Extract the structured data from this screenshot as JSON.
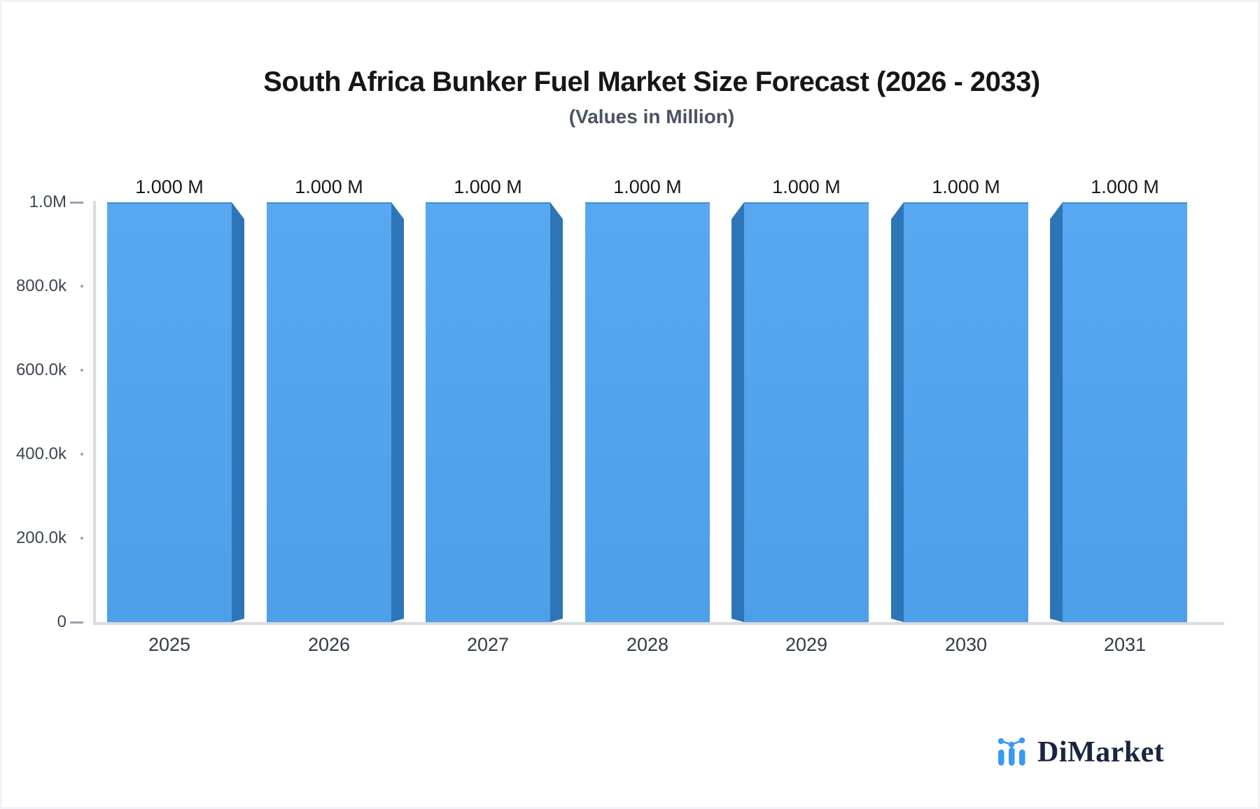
{
  "header": {
    "title": "South Africa Bunker Fuel Market Size Forecast (2026 - 2033)",
    "subtitle": "(Values in Million)"
  },
  "chart_data": {
    "type": "bar",
    "title": "South Africa Bunker Fuel Market Size Forecast (2026 - 2033)",
    "subtitle": "(Values in Million)",
    "categories": [
      "2025",
      "2026",
      "2027",
      "2028",
      "2029",
      "2030",
      "2031"
    ],
    "values": [
      1000000,
      1000000,
      1000000,
      1000000,
      1000000,
      1000000,
      1000000
    ],
    "bar_labels": [
      "1.000 M",
      "1.000 M",
      "1.000 M",
      "1.000 M",
      "1.000 M",
      "1.000 M",
      "1.000 M"
    ],
    "xlabel": "",
    "ylabel": "",
    "ylim": [
      0,
      1000000
    ],
    "y_ticks": [
      {
        "label": "0",
        "value": 0,
        "major": true
      },
      {
        "label": "200.0k",
        "value": 200000,
        "major": false
      },
      {
        "label": "400.0k",
        "value": 400000,
        "major": false
      },
      {
        "label": "600.0k",
        "value": 600000,
        "major": false
      },
      {
        "label": "800.0k",
        "value": 800000,
        "major": false
      },
      {
        "label": "1.0M",
        "value": 1000000,
        "major": true
      }
    ],
    "grid": false,
    "legend": false,
    "style": {
      "effect": "3d-bevel",
      "bar_face_color_top": "#58a8f1",
      "bar_face_color_bottom": "#4d9fe9",
      "bar_side_color": "#2d75b6",
      "bar_top_edge_color": "#4190d2",
      "axis_line_color": "#d8dbe0",
      "tick_mark_color": "#9aa1aa",
      "tick_label_color": "#3d4654",
      "category_label_color": "#313a49",
      "value_label_color": "#17191e"
    }
  },
  "branding": {
    "name": "DiMarket",
    "icon": "mini-bar-chart",
    "icon_color": "#3b99f2",
    "name_color": "#1b2540"
  }
}
